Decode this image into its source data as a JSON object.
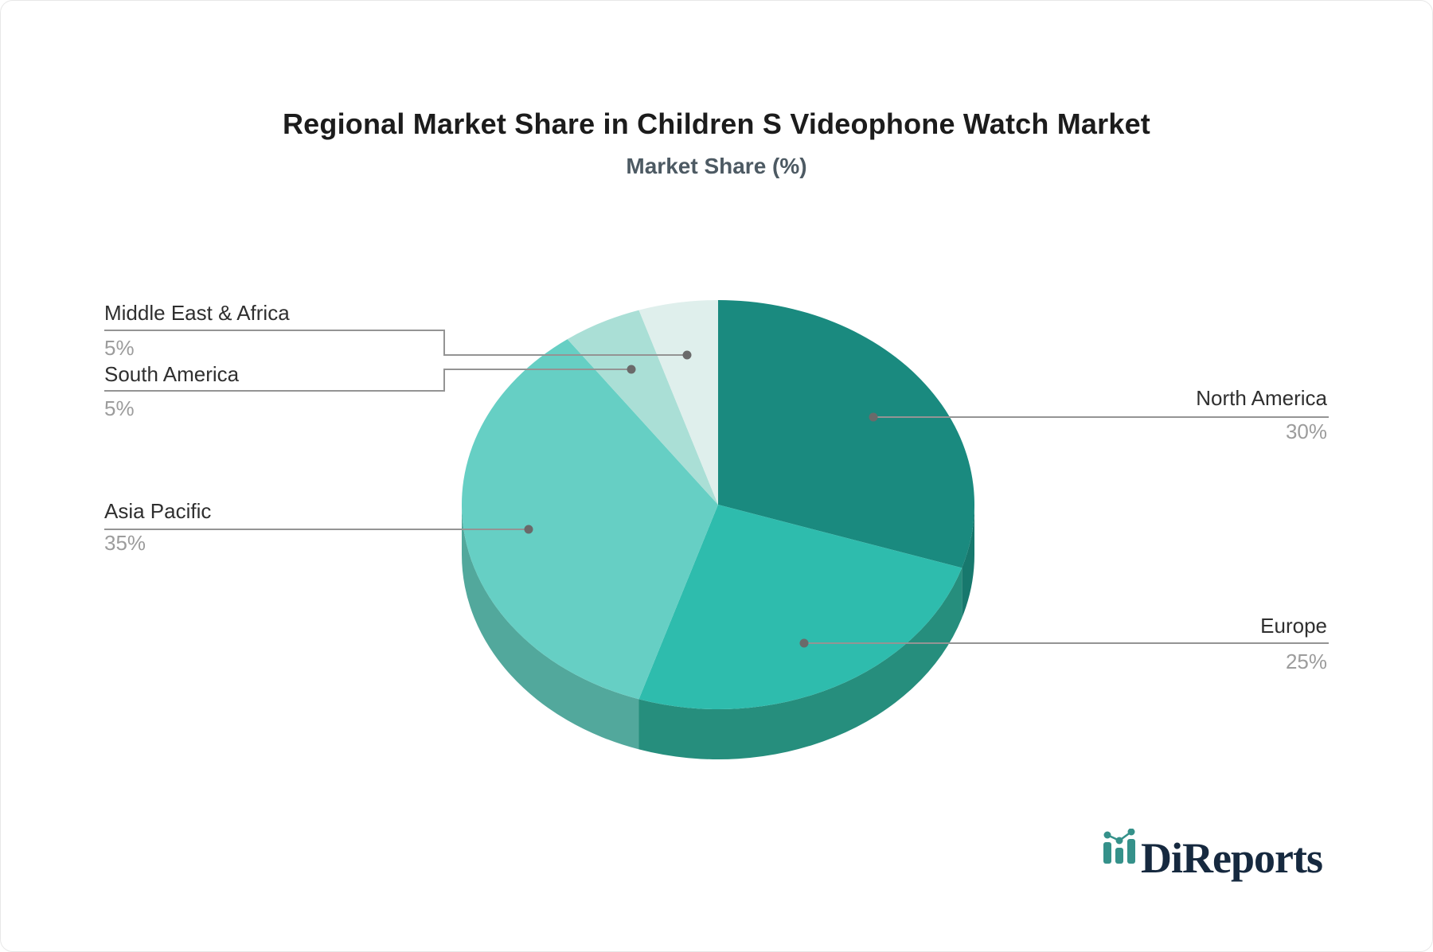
{
  "title": "Regional Market Share in Children S Videophone Watch Market",
  "subtitle": "Market Share (%)",
  "logo": {
    "text": "DiReports",
    "icon_color": "#35918a",
    "text_color": "#16293f"
  },
  "leader": {
    "line_color": "#949494",
    "dot_color": "#6a6a6a"
  },
  "chart_data": {
    "type": "pie",
    "title": "Regional Market Share in Children S Videophone Watch Market",
    "subtitle": "Market Share (%)",
    "unit": "%",
    "effect": "3d",
    "start_angle_deg": 0,
    "direction": "clockwise",
    "legend_position": "none",
    "slices": [
      {
        "label": "North America",
        "value": 30,
        "value_text": "30%",
        "color": "#1a8a7f",
        "rim_color": "#17786d"
      },
      {
        "label": "Europe",
        "value": 25,
        "value_text": "25%",
        "color": "#2ebcad",
        "rim_color": "#268e7d"
      },
      {
        "label": "Asia Pacific",
        "value": 35,
        "value_text": "35%",
        "color": "#66cfc4",
        "rim_color": "#52a89c"
      },
      {
        "label": "South America",
        "value": 5,
        "value_text": "5%",
        "color": "#aadfd6",
        "rim_color": "#8cc9bf"
      },
      {
        "label": "Middle East & Africa",
        "value": 5,
        "value_text": "5%",
        "color": "#dfefec",
        "rim_color": "#bcd8d3"
      }
    ]
  }
}
